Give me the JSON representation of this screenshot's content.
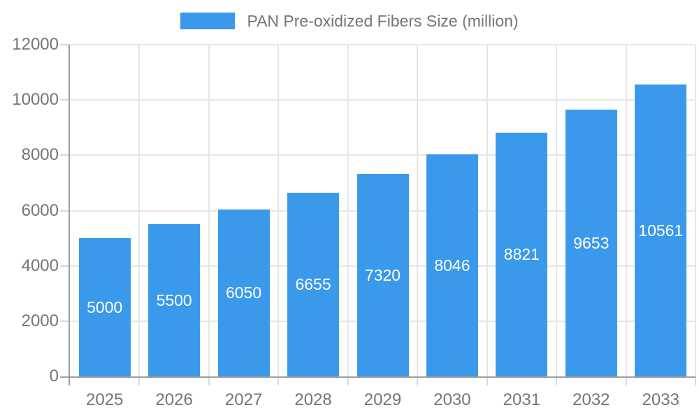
{
  "legend": {
    "label": "PAN Pre-oxidized Fibers Size (million)"
  },
  "chart_data": {
    "type": "bar",
    "title": "PAN Pre-oxidized Fibers Size (million)",
    "categories": [
      "2025",
      "2026",
      "2027",
      "2028",
      "2029",
      "2030",
      "2031",
      "2032",
      "2033"
    ],
    "series": [
      {
        "name": "PAN Pre-oxidized Fibers Size (million)",
        "values": [
          5000,
          5500,
          6050,
          6655,
          7320,
          8046,
          8821,
          9653,
          10561
        ]
      }
    ],
    "bar_labels": [
      "5000",
      "5500",
      "6050",
      "6655",
      "7320",
      "8046",
      "8821",
      "9653",
      "10561"
    ],
    "xlabel": "",
    "ylabel": "",
    "ylim": [
      0,
      12000
    ],
    "ytick_interval": 2000,
    "yticks": [
      "0",
      "2000",
      "4000",
      "6000",
      "8000",
      "10000",
      "12000"
    ],
    "grid": true,
    "legend_position": "top"
  },
  "colors": {
    "bar": "#3b99ec",
    "bar_label_text": "#ffffff",
    "gridline": "#e6e6e6",
    "axis_line": "#9e9e9e",
    "tick_mark": "#d9d9d9",
    "label_text": "#757575",
    "background": "#ffffff"
  }
}
